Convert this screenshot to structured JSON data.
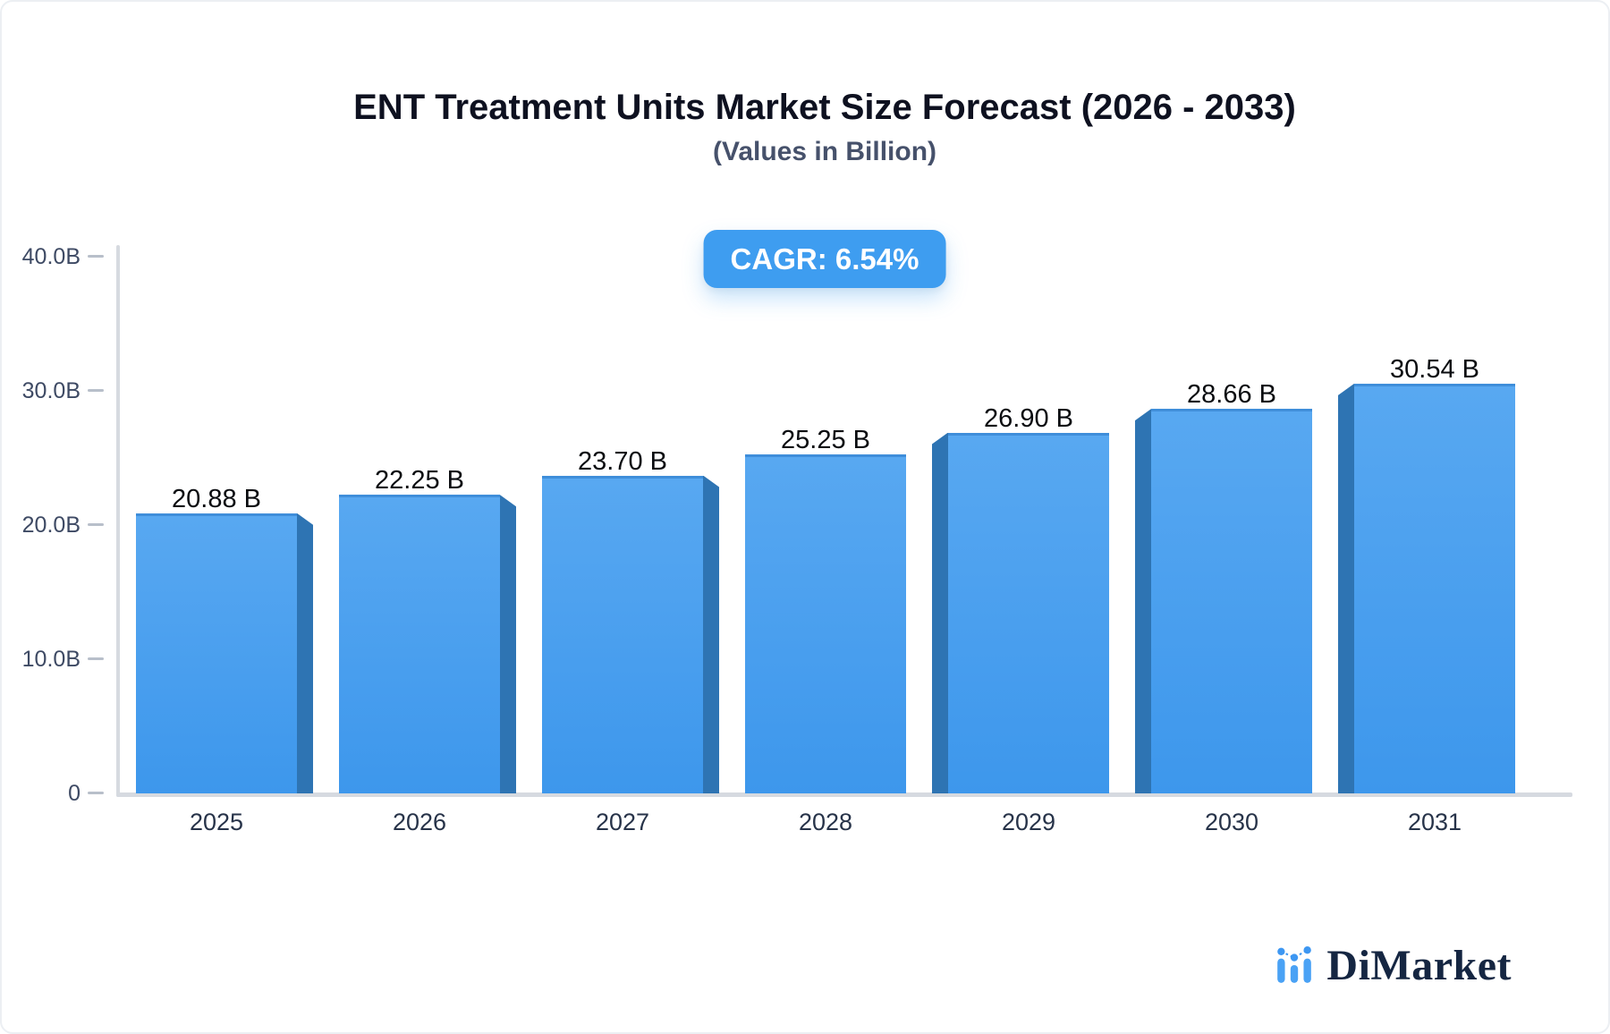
{
  "header": {
    "title": "ENT Treatment Units Market Size Forecast (2026 - 2033)",
    "subtitle": "(Values in Billion)",
    "cagr": "CAGR: 6.54%"
  },
  "chart_data": {
    "type": "bar",
    "title": "ENT Treatment Units Market Size Forecast (2026 - 2033)",
    "subtitle": "(Values in Billion)",
    "annotation": "CAGR: 6.54%",
    "categories": [
      "2025",
      "2026",
      "2027",
      "2028",
      "2029",
      "2030",
      "2031"
    ],
    "values": [
      20.88,
      22.25,
      23.7,
      25.25,
      26.9,
      28.66,
      30.54
    ],
    "value_labels": [
      "20.88 B",
      "22.25 B",
      "23.70 B",
      "25.25 B",
      "26.90 B",
      "28.66 B",
      "30.54 B"
    ],
    "xlabel": "",
    "ylabel": "",
    "ylim": [
      0,
      40
    ],
    "yticks": [
      {
        "value": 0,
        "label": "0"
      },
      {
        "value": 10,
        "label": "10.0B"
      },
      {
        "value": 20,
        "label": "20.0B"
      },
      {
        "value": 30,
        "label": "30.0B"
      },
      {
        "value": 40,
        "label": "40.0B"
      }
    ],
    "grid": false,
    "legend": false,
    "bar_style": "3d-perspective-center"
  },
  "logo": {
    "text": "DiMarket",
    "icon": "mini-bar-chart-with-dotted-line-icon"
  },
  "colors": {
    "bar-face-top": "#58A8F1",
    "bar-face-bottom": "#3D97EC",
    "bar-top-border": "#3F8EDA",
    "bar-side": "#2E74B3",
    "axis-line": "#D6DAE0",
    "tick-dash": "#B8BFCA",
    "ytick-label": "#3E4A64",
    "xtick-label": "#273349",
    "value-label": "#0A0C10",
    "title": "#0E1120",
    "subtitle": "#46516B",
    "badge-bg": "#3E9DF0",
    "badge-text": "#FFFFFF",
    "logo-text": "#152642",
    "logo-icon": "#4AA2F5",
    "logo-dot": "#3D97F2"
  }
}
